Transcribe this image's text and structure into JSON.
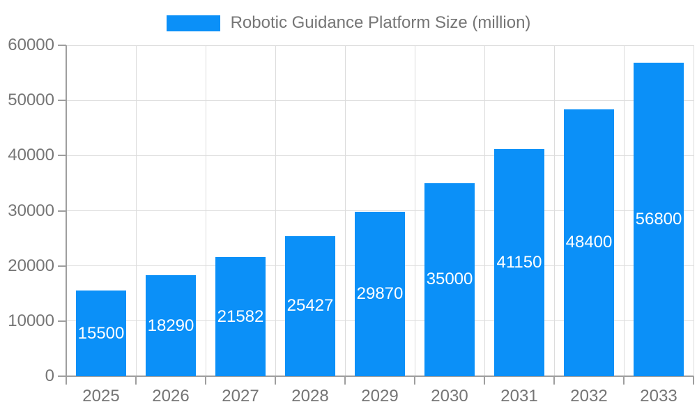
{
  "chart_data": {
    "type": "bar",
    "title": "",
    "categories": [
      "2025",
      "2026",
      "2027",
      "2028",
      "2029",
      "2030",
      "2031",
      "2032",
      "2033"
    ],
    "series": [
      {
        "name": "Robotic Guidance Platform Size (million)",
        "values": [
          15500,
          18290,
          21582,
          25427,
          29870,
          35000,
          41150,
          48400,
          56800
        ]
      }
    ],
    "xlabel": "",
    "ylabel": "",
    "ylim": [
      0,
      60000
    ],
    "ytick_step": 10000,
    "yticks": [
      0,
      10000,
      20000,
      30000,
      40000,
      50000,
      60000
    ],
    "grid": true,
    "legend_position": "top",
    "bar_value_labels": "inside-center"
  },
  "colors": {
    "bar": "#0b90f8",
    "bar_label_text": "#ffffff",
    "axis_text": "#757575",
    "legend_text": "#757575",
    "grid_line": "#dcdcdc",
    "axis_line": "#9e9e9e",
    "background": "#ffffff"
  }
}
